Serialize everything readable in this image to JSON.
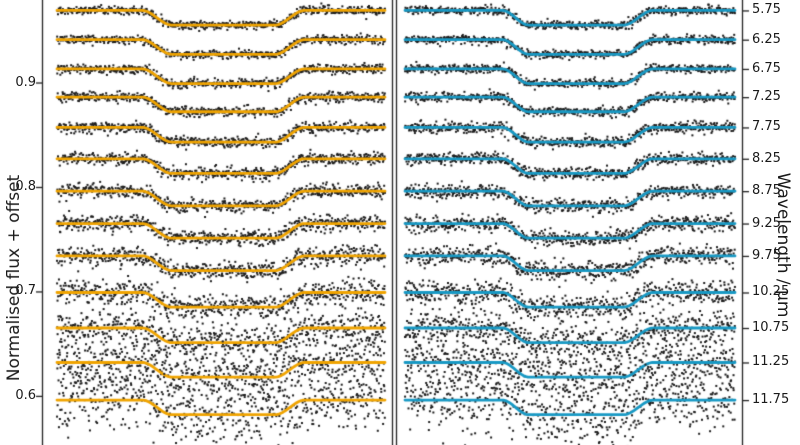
{
  "chart_data": {
    "type": "scatter",
    "description": "Two panels of stacked exoplanet transit light curves (scatter data points with fitted model lines), one transit per wavelength channel, vertically offset",
    "ylabel": "Normalised flux + offset",
    "right_label": "Wavelength / μm",
    "flux_tick_labels": [
      "0.9",
      "0.8",
      "0.7",
      "0.6"
    ],
    "flux_tick_values": [
      0.9,
      0.8,
      0.7,
      0.6
    ],
    "flux_axis_range": [
      0.553,
      0.979
    ],
    "grid": false,
    "wavelength_tick_labels": [
      "5.75",
      "6.25",
      "6.75",
      "7.25",
      "7.75",
      "8.25",
      "8.75",
      "9.25",
      "9.75",
      "10.25",
      "10.75",
      "11.25",
      "11.75"
    ],
    "wavelengths_um": [
      5.75,
      6.25,
      6.75,
      7.25,
      7.75,
      8.25,
      8.75,
      9.25,
      9.75,
      10.25,
      10.75,
      11.25,
      11.75
    ],
    "baseline_flux": [
      0.969,
      0.941,
      0.913,
      0.886,
      0.857,
      0.827,
      0.796,
      0.765,
      0.734,
      0.699,
      0.665,
      0.632,
      0.596
    ],
    "transit_depth": 0.014,
    "noise_sigma": [
      0.002,
      0.002,
      0.0021,
      0.0023,
      0.0025,
      0.0028,
      0.0031,
      0.0036,
      0.0043,
      0.006,
      0.0085,
      0.0112,
      0.015
    ],
    "points_per_curve": 620,
    "marker_color": "#1e1e1e",
    "axis_color": "#222222",
    "panels": [
      {
        "name": "left",
        "model_color": "#f0a400",
        "transit_window": [
          0.26,
          0.35,
          0.665,
          0.755
        ]
      },
      {
        "name": "right",
        "model_color": "#1899c4",
        "transit_window": [
          0.295,
          0.375,
          0.662,
          0.752
        ]
      }
    ]
  }
}
